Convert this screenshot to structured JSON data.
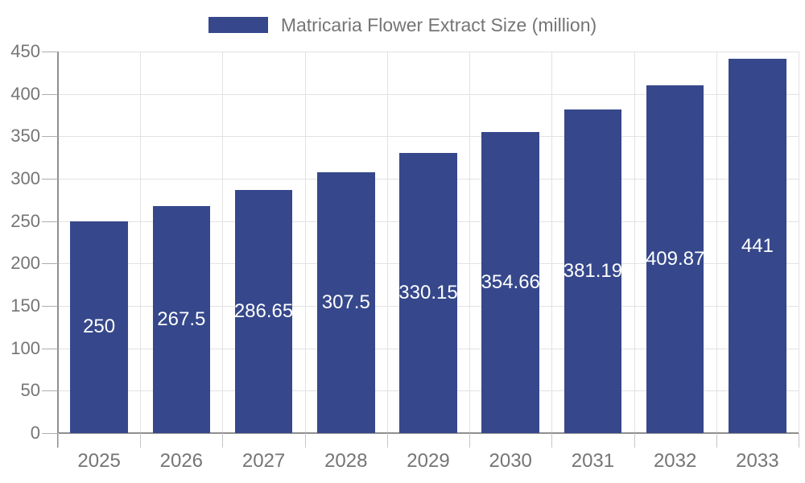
{
  "chart_data": {
    "type": "bar",
    "title": "Matricaria Flower Extract Size (million)",
    "legend_position": "top-center",
    "categories": [
      "2025",
      "2026",
      "2027",
      "2028",
      "2029",
      "2030",
      "2031",
      "2032",
      "2033"
    ],
    "values": [
      250,
      267.5,
      286.65,
      307.5,
      330.15,
      354.66,
      381.19,
      409.87,
      441
    ],
    "value_labels": [
      "250",
      "267.5",
      "286.65",
      "307.5",
      "330.15",
      "354.66",
      "381.19",
      "409.87",
      "441"
    ],
    "xlabel": "",
    "ylabel": "",
    "ylim": [
      0,
      450
    ],
    "ytick_step": 50,
    "ytick_labels": [
      "0",
      "50",
      "100",
      "150",
      "200",
      "250",
      "300",
      "350",
      "400",
      "450"
    ],
    "grid": true,
    "bar_color": "#36488B",
    "value_label_color": "#ffffff",
    "grid_color": "#e2e2e2",
    "axis_color": "#8f8f8f",
    "text_color": "#757575"
  }
}
